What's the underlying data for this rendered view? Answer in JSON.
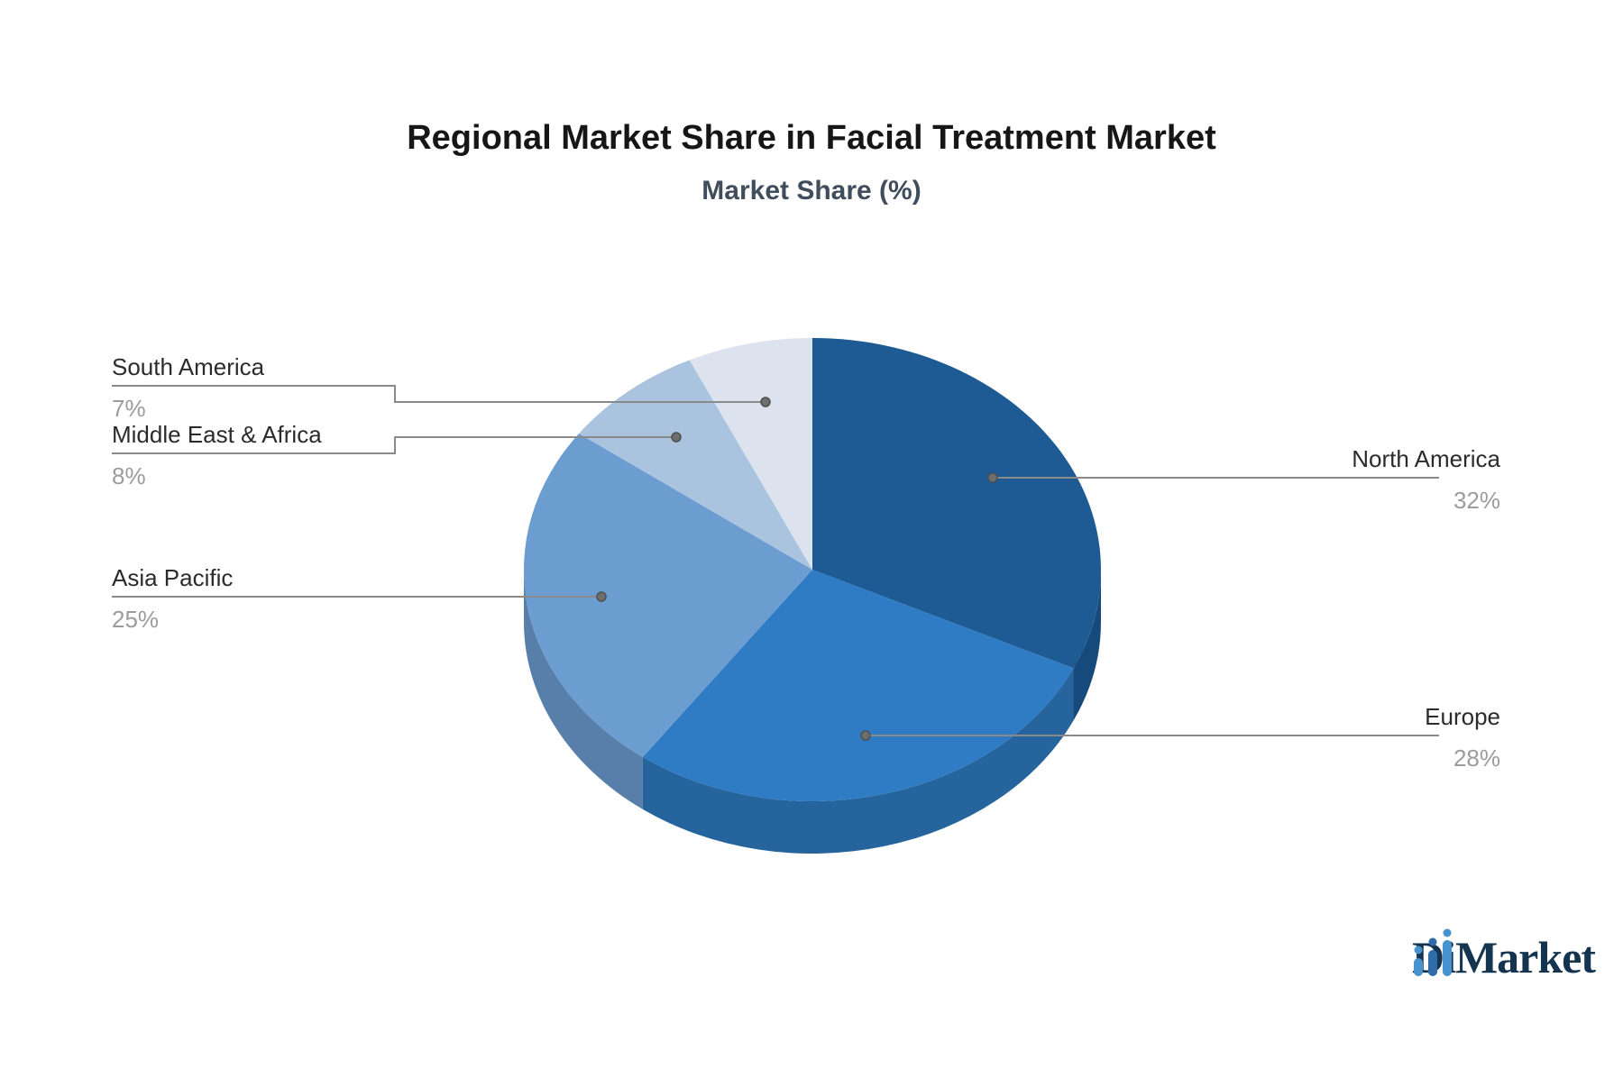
{
  "chart_data": {
    "type": "pie",
    "style": "3d",
    "title": "Regional Market Share in Facial Treatment Market",
    "subtitle": "Market Share (%)",
    "unit": "%",
    "start_angle": "top",
    "direction": "clockwise",
    "legend": false,
    "label_color": "#2b2b2b",
    "pct_color": "#9c9c9c",
    "line_color": "#8a8a8a",
    "background": "#ffffff",
    "slices": [
      {
        "name": "North America",
        "value": 32,
        "label": "32%",
        "color": "#1e5a94",
        "side_color": "#174a7c",
        "label_side": "right"
      },
      {
        "name": "Europe",
        "value": 28,
        "label": "28%",
        "color": "#2f7cc4",
        "side_color": "#26649e",
        "label_side": "right"
      },
      {
        "name": "Asia Pacific",
        "value": 25,
        "label": "25%",
        "color": "#6c9dd1",
        "side_color": "#577fa9",
        "label_side": "left"
      },
      {
        "name": "Middle East & Africa",
        "value": 8,
        "label": "8%",
        "color": "#aac4e0",
        "side_color": "#8aa0b8",
        "label_side": "left"
      },
      {
        "name": "South America",
        "value": 7,
        "label": "7%",
        "color": "#dce3ee",
        "side_color": "#b4bac4",
        "label_side": "left"
      }
    ]
  },
  "branding": {
    "logo_text": "DiMarket",
    "logo_color": "#14344f",
    "icon": "bar-chart-icon",
    "icon_color": "#4792cf"
  }
}
